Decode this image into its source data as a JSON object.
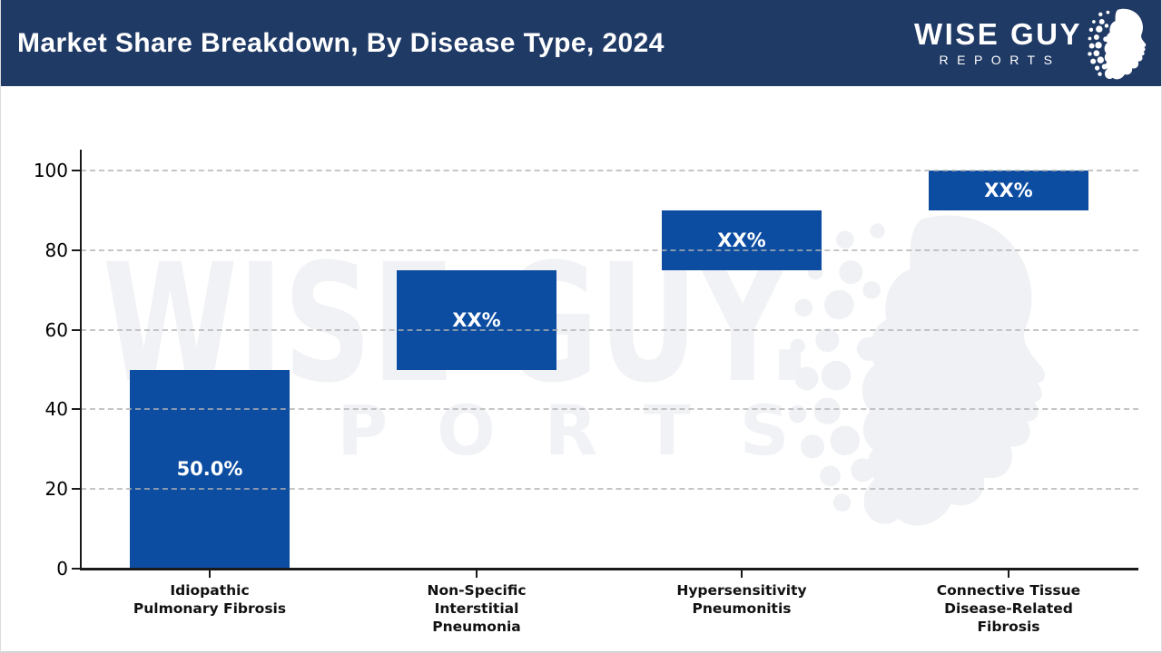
{
  "header": {
    "title": "Market Share Breakdown, By Disease Type, 2024",
    "logo": {
      "name_top": "WISE GUY",
      "name_bottom": "REPORTS"
    }
  },
  "watermark": {
    "line1": "WISE GUY.",
    "line2": "REPORTS"
  },
  "colors": {
    "header_bg": "#203a66",
    "bar": "#0c4da2",
    "grid": "#b2b2b2",
    "axis": "#1a1a1a",
    "watermark": "#f1f2f5"
  },
  "chart_data": {
    "type": "bar",
    "subtype": "waterfall",
    "title": "Market Share Breakdown, By Disease Type, 2024",
    "categories": [
      "Idiopathic\nPulmonary Fibrosis",
      "Non-Specific\nInterstitial\nPneumonia",
      "Hypersensitivity\nPneumonitis",
      "Connective Tissue\nDisease-Related\nFibrosis"
    ],
    "segments": [
      {
        "category": "Idiopathic Pulmonary Fibrosis",
        "start": 0,
        "end": 50,
        "label": "50.0%"
      },
      {
        "category": "Non-Specific Interstitial Pneumonia",
        "start": 50,
        "end": 75,
        "label": "XX%"
      },
      {
        "category": "Hypersensitivity Pneumonitis",
        "start": 75,
        "end": 90,
        "label": "XX%"
      },
      {
        "category": "Connective Tissue Disease-Related Fibrosis",
        "start": 90,
        "end": 100,
        "label": "XX%"
      }
    ],
    "xlabel": "",
    "ylabel": "",
    "ylim": [
      0,
      100
    ],
    "yticks": [
      0,
      20,
      40,
      60,
      80,
      100
    ],
    "grid": "horizontal-dashed-over-bars",
    "legend": "none",
    "bar_color": "#0c4da2"
  }
}
